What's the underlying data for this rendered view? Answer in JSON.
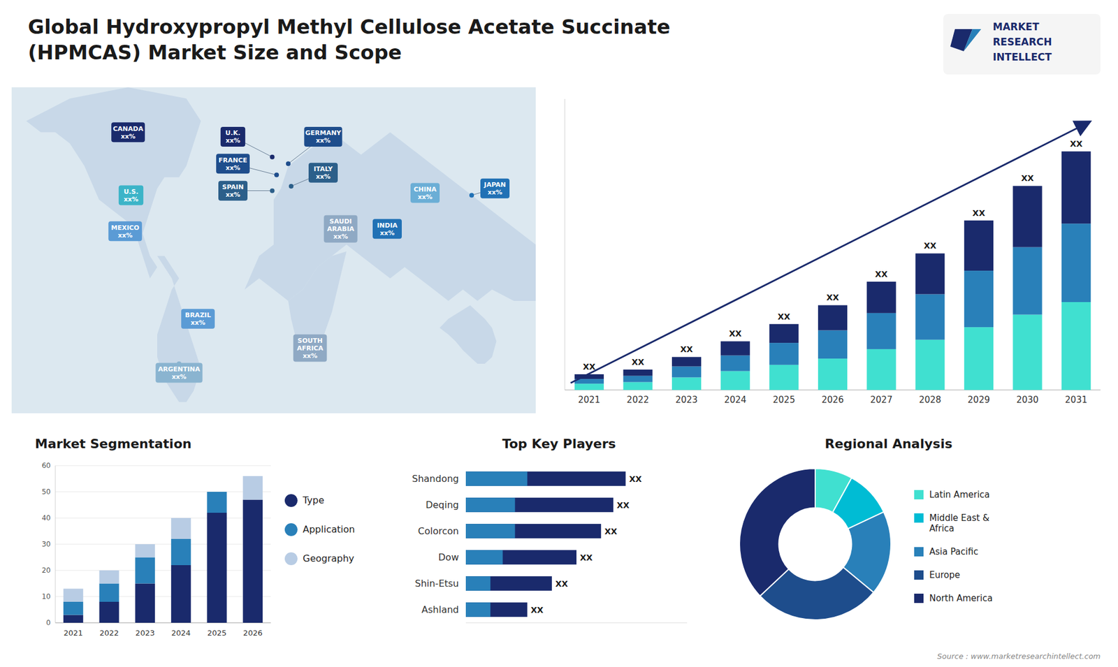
{
  "chart_data": [
    {
      "type": "bar",
      "stacked": true,
      "title": "Global Hydroxypropyl Methyl Cellulose Acetate Succinate\n(HPMCAS) Market Size and Scope",
      "categories": [
        "2021",
        "2022",
        "2023",
        "2024",
        "2025",
        "2026",
        "2027",
        "2028",
        "2029",
        "2030",
        "2031"
      ],
      "series": [
        {
          "color": "#40e0d0",
          "values": [
            2,
            2.5,
            4,
            6,
            8,
            10,
            13,
            16,
            20,
            24,
            28
          ]
        },
        {
          "color": "#2980b9",
          "values": [
            1.5,
            2,
            3.5,
            5,
            7,
            9,
            11.5,
            14.5,
            18,
            21.5,
            25
          ]
        },
        {
          "color": "#1a2a6c",
          "values": [
            1.5,
            2,
            3,
            4.5,
            6,
            8,
            10,
            13,
            16,
            19.5,
            23
          ],
          "value_labels": [
            "XX",
            "XX",
            "XX",
            "XX",
            "XX",
            "XX",
            "XX",
            "XX",
            "XX",
            "XX",
            "XX"
          ]
        }
      ],
      "ylim": [
        0,
        92.72
      ],
      "tick_labels": "x",
      "annotations": [
        "MARKET",
        "RESEARCH",
        "INTELLECT",
        "Source : www.marketresearchintellect.com"
      ]
    },
    {
      "type": "map",
      "annotations": [
        "CANADA\nxx%",
        "U.S.\nxx%",
        "MEXICO\nxx%",
        "BRAZIL\nxx%",
        "ARGENTINA\nxx%",
        "U.K.\nxx%",
        "FRANCE\nxx%",
        "SPAIN\nxx%",
        "GERMANY\nxx%",
        "ITALY\nxx%",
        "SAUDI\nARABIA\nxx%",
        "SOUTH\nAFRICA\nxx%",
        "INDIA\nxx%",
        "CHINA\nxx%",
        "JAPAN\nxx%"
      ]
    },
    {
      "type": "bar",
      "stacked": true,
      "title": "Market Segmentation",
      "categories": [
        "2021",
        "2022",
        "2023",
        "2024",
        "2025",
        "2026"
      ],
      "series": [
        {
          "name": "Type",
          "color": "#1a2a6c",
          "values": [
            3,
            8,
            15,
            22,
            42,
            47
          ]
        },
        {
          "name": "Application",
          "color": "#2980b9",
          "values": [
            5,
            7,
            10,
            10,
            8,
            0
          ]
        },
        {
          "name": "Geography",
          "color": "#b8cce4",
          "values": [
            5,
            5,
            5,
            8,
            0,
            9
          ]
        }
      ],
      "ylim": [
        0,
        60
      ],
      "yticks": [
        0,
        10,
        20,
        30,
        40,
        50,
        60
      ],
      "grid": true,
      "legend": "right"
    },
    {
      "type": "bar",
      "orientation": "horizontal",
      "stacked": false,
      "title": "Top Key Players",
      "categories": [
        "Shandong",
        "Deqing",
        "Colorcon",
        "Dow",
        "Shin-Etsu",
        "Ashland"
      ],
      "series": [
        {
          "color": "#1a2a6c",
          "values": [
            6.5,
            6.0,
            5.5,
            4.5,
            3.5,
            2.5
          ],
          "value_labels": [
            "XX",
            "XX",
            "XX",
            "XX",
            "XX",
            "XX"
          ]
        },
        {
          "color": "#2980b9",
          "values": [
            2.5,
            2.0,
            2.0,
            1.5,
            1.0,
            1.0
          ]
        }
      ],
      "xlim": [
        0,
        9
      ],
      "tick_labels": "y"
    },
    {
      "type": "pie",
      "title": "Regional Analysis",
      "categories": [
        "Latin America",
        "Middle East &\nAfrica",
        "Asia Pacific",
        "Europe",
        "North America"
      ],
      "values": [
        8,
        10,
        18,
        27,
        37
      ],
      "colors": [
        "#40e0d0",
        "#00bcd4",
        "#2980b9",
        "#1e4d8c",
        "#1a2a6c"
      ],
      "legend": "right"
    }
  ]
}
